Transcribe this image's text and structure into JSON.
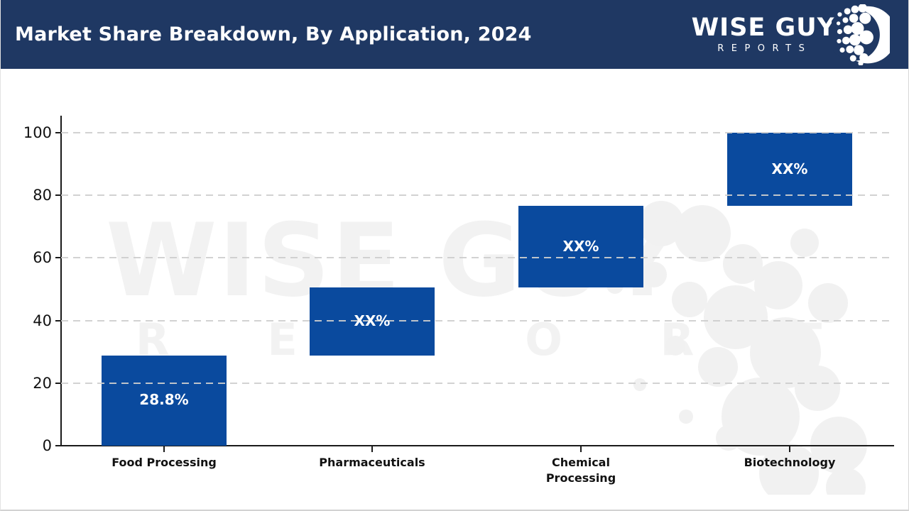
{
  "header": {
    "title": "Market Share Breakdown, By Application, 2024",
    "logo": {
      "wordmark": "WISE GUY",
      "subtext": "REPORTS"
    }
  },
  "watermark": {
    "wordmark": "WISE GUY",
    "subtext": "R E P O R T S"
  },
  "colors": {
    "header_bg": "#1F3863",
    "bar_blue": "#0A4A9E",
    "gridline_gray": "#CECECE",
    "axis_black": "#1a1a1a",
    "watermark_gray": "#f2f2f2"
  },
  "chart_data": {
    "type": "bar",
    "subtype": "waterfall",
    "title": "Market Share Breakdown, By Application, 2024",
    "xlabel": "",
    "ylabel": "",
    "ylim": [
      0,
      105
    ],
    "yticks": [
      0,
      20,
      40,
      60,
      80,
      100
    ],
    "grid": "horizontal dashed, drawn over bars",
    "legend": "none",
    "bar_color": "#0A4A9E",
    "bars": [
      {
        "category": "Food Processing",
        "start": 0,
        "end": 28.8,
        "value": 28.8,
        "label": "28.8%"
      },
      {
        "category": "Pharmaceuticals",
        "start": 28.8,
        "end": 50.6,
        "value": 21.8,
        "label": "XX%"
      },
      {
        "category": "Chemical\nProcessing",
        "start": 50.6,
        "end": 76.6,
        "value": 26.0,
        "label": "XX%"
      },
      {
        "category": "Biotechnology",
        "start": 76.6,
        "end": 100,
        "value": 23.4,
        "label": "XX%"
      }
    ]
  }
}
